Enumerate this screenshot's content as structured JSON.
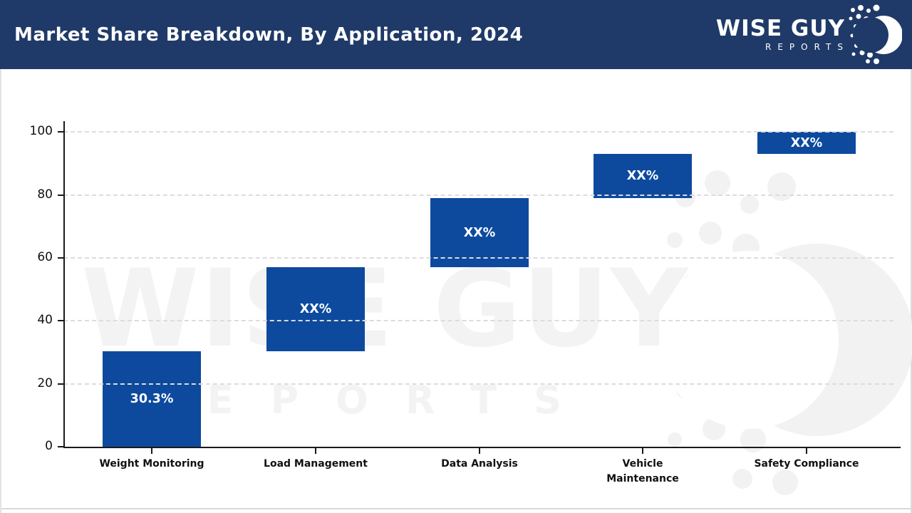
{
  "header": {
    "title": "Market Share Breakdown, By Application, 2024",
    "logo": {
      "line1": "WISE GUY",
      "line2": "REPORTS"
    }
  },
  "watermark": {
    "line1": "WISE GUY",
    "line2": "REPORTS"
  },
  "colors": {
    "header_bg": "#1f3a68",
    "bar": "#0d4a9e",
    "gridline": "#dcdcdc",
    "axis": "#1a1a1a",
    "bar_label_text": "#ffffff",
    "tick_text": "#111111",
    "watermark": "#f3f3f3",
    "background": "#ffffff"
  },
  "chart_data": {
    "type": "bar",
    "subtype": "waterfall-floating-bars",
    "title": "Market Share Breakdown, By Application, 2024",
    "xlabel": "",
    "ylabel": "",
    "categories": [
      "Weight Monitoring",
      "Load Management",
      "Data Analysis",
      "Vehicle Maintenance",
      "Safety Compliance"
    ],
    "categories_display": [
      "Weight Monitoring",
      "Load Management",
      "Data Analysis",
      "Vehicle\nMaintenance",
      "Safety Compliance"
    ],
    "bars": [
      {
        "category": "Weight Monitoring",
        "start": 0,
        "end": 30.3,
        "value": 30.3,
        "label": "30.3%"
      },
      {
        "category": "Load Management",
        "start": 30.3,
        "end": 57,
        "value": 26.7,
        "label": "XX%"
      },
      {
        "category": "Data Analysis",
        "start": 57,
        "end": 79,
        "value": 22,
        "label": "XX%"
      },
      {
        "category": "Vehicle Maintenance",
        "start": 79,
        "end": 93,
        "value": 14,
        "label": "XX%"
      },
      {
        "category": "Safety Compliance",
        "start": 93,
        "end": 100,
        "value": 7,
        "label": "XX%"
      }
    ],
    "ylim": [
      0,
      103
    ],
    "yticks": [
      0,
      20,
      40,
      60,
      80,
      100
    ],
    "grid": "horizontal-dashed-drawn-over-bars",
    "legend": "none"
  }
}
